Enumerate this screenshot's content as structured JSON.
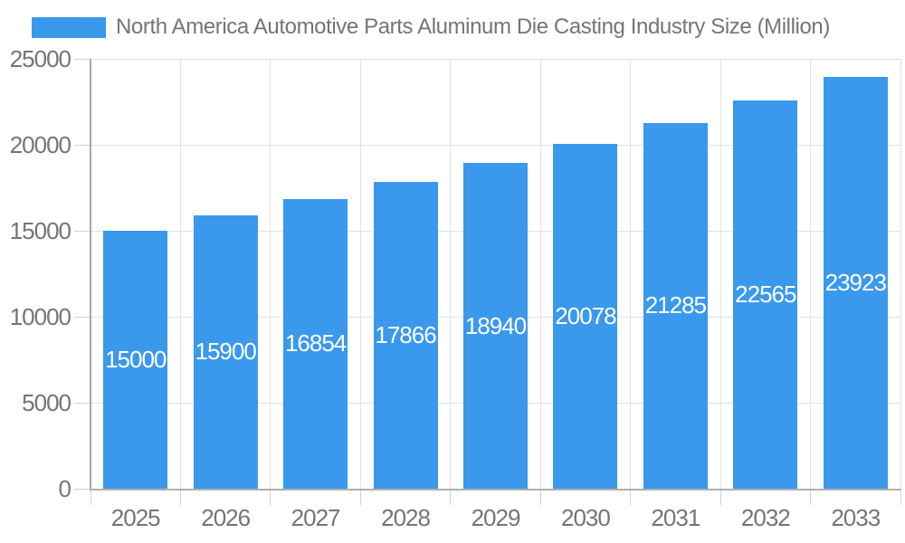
{
  "chart_data": {
    "type": "bar",
    "title": "North America Automotive Parts Aluminum Die Casting Industry Size (Million)",
    "categories": [
      "2025",
      "2026",
      "2027",
      "2028",
      "2029",
      "2030",
      "2031",
      "2032",
      "2033"
    ],
    "values": [
      15000,
      15900,
      16854,
      17866,
      18940,
      20078,
      21285,
      22565,
      23923
    ],
    "xlabel": "",
    "ylabel": "",
    "ylim": [
      0,
      25000
    ],
    "y_ticks": [
      0,
      5000,
      10000,
      15000,
      20000,
      25000
    ],
    "grid": "both",
    "legend_position": "top-left",
    "bar_color": "#3a99ec",
    "bar_label_color": "#ffffff",
    "axis_text_color": "#757575",
    "title_color": "#757575",
    "gridline_color": "#e2e2e2",
    "tick_color": "#d2d2d2",
    "y_axis_line_color": "#a6a6a6",
    "x_axis_line_color": "#b0b0b0"
  }
}
